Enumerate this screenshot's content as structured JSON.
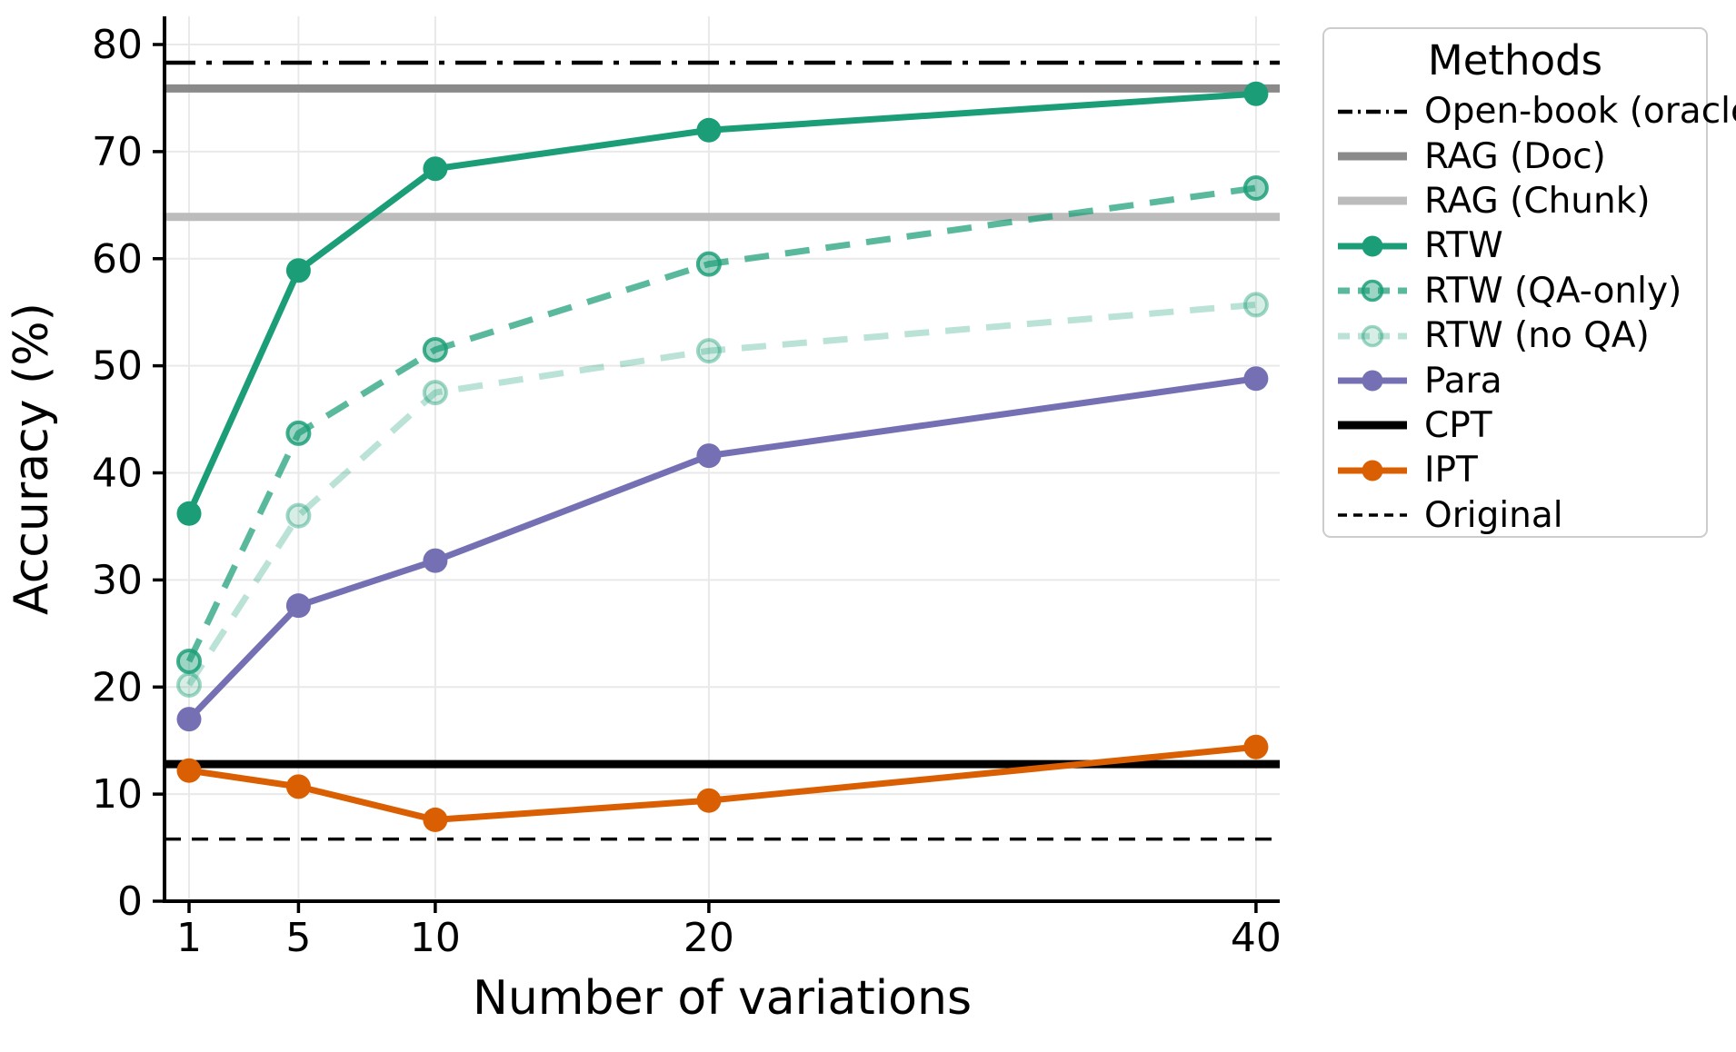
{
  "figure": {
    "background": "#ffffff",
    "text_color": "#000000",
    "grid_color": "#e9e9e9"
  },
  "legend": {
    "title": "Methods",
    "items": [
      {
        "label": "Open-book (oracle)",
        "slug": "open-book-oracle",
        "color": "#000000",
        "style": "dashdot",
        "width": 4.5,
        "marker": false,
        "opacity": 1
      },
      {
        "label": "RAG (Doc)",
        "slug": "rag-doc",
        "color": "#8a8a8a",
        "style": "solid",
        "width": 9,
        "marker": false,
        "opacity": 1
      },
      {
        "label": "RAG (Chunk)",
        "slug": "rag-chunk",
        "color": "#bcbcbc",
        "style": "solid",
        "width": 9,
        "marker": false,
        "opacity": 1
      },
      {
        "label": "RTW",
        "slug": "rtw",
        "color": "#1b9e77",
        "style": "solid",
        "width": 7,
        "marker": true,
        "opacity": 1
      },
      {
        "label": "RTW (QA-only)",
        "slug": "rtw-qa-only",
        "color": "#1b9e77",
        "style": "dashed",
        "width": 7,
        "marker": true,
        "opacity": 0.72
      },
      {
        "label": "RTW (no QA)",
        "slug": "rtw-no-qa",
        "color": "#1b9e77",
        "style": "dashed",
        "width": 7,
        "marker": true,
        "opacity": 0.3
      },
      {
        "label": "Para",
        "slug": "para",
        "color": "#7570b3",
        "style": "solid",
        "width": 7,
        "marker": true,
        "opacity": 1
      },
      {
        "label": "CPT",
        "slug": "cpt",
        "color": "#000000",
        "style": "solid",
        "width": 9,
        "marker": false,
        "opacity": 1
      },
      {
        "label": "IPT",
        "slug": "ipt",
        "color": "#d95f02",
        "style": "solid",
        "width": 7,
        "marker": true,
        "opacity": 1
      },
      {
        "label": "Original",
        "slug": "original",
        "color": "#000000",
        "style": "shortdash",
        "width": 3.5,
        "marker": false,
        "opacity": 1
      }
    ]
  },
  "chart_data": {
    "type": "line",
    "title": "",
    "xlabel": "Number of variations",
    "ylabel": "Accuracy (%)",
    "x": [
      1,
      5,
      10,
      20,
      40
    ],
    "x_ticks": [
      1,
      5,
      10,
      20,
      40
    ],
    "y_ticks": [
      0,
      10,
      20,
      30,
      40,
      50,
      60,
      70,
      80
    ],
    "xlim": [
      0.2,
      40.9
    ],
    "ylim": [
      0,
      82.6
    ],
    "grid": true,
    "legend_position": "outside-right",
    "legend_title": "Methods",
    "series": [
      {
        "name": "RTW",
        "slug": "rtw",
        "color": "#1b9e77",
        "style": "solid",
        "opacity": 1,
        "marker": true,
        "values": [
          36.2,
          58.9,
          68.4,
          72.0,
          75.4
        ]
      },
      {
        "name": "RTW (QA-only)",
        "slug": "rtw-qa-only",
        "color": "#1b9e77",
        "style": "dashed",
        "opacity": 0.72,
        "marker": true,
        "values": [
          22.4,
          43.7,
          51.5,
          59.5,
          66.6
        ]
      },
      {
        "name": "RTW (no QA)",
        "slug": "rtw-no-qa",
        "color": "#1b9e77",
        "style": "dashed",
        "opacity": 0.3,
        "marker": true,
        "values": [
          20.2,
          36.0,
          47.5,
          51.4,
          55.7
        ]
      },
      {
        "name": "Para",
        "slug": "para",
        "color": "#7570b3",
        "style": "solid",
        "opacity": 1,
        "marker": true,
        "values": [
          17.0,
          27.6,
          31.8,
          41.6,
          48.8
        ]
      },
      {
        "name": "IPT",
        "slug": "ipt",
        "color": "#d95f02",
        "style": "solid",
        "opacity": 1,
        "marker": true,
        "values": [
          12.2,
          10.7,
          7.6,
          9.4,
          14.4
        ]
      }
    ],
    "hlines": [
      {
        "name": "Open-book (oracle)",
        "slug": "open-book-oracle",
        "value": 78.3,
        "color": "#000000",
        "style": "dashdot",
        "width": 4.5
      },
      {
        "name": "RAG (Doc)",
        "slug": "rag-doc",
        "value": 75.9,
        "color": "#8a8a8a",
        "style": "solid",
        "width": 9
      },
      {
        "name": "RAG (Chunk)",
        "slug": "rag-chunk",
        "value": 63.9,
        "color": "#bcbcbc",
        "style": "solid",
        "width": 9
      },
      {
        "name": "CPT",
        "slug": "cpt",
        "value": 12.8,
        "color": "#000000",
        "style": "solid",
        "width": 9
      },
      {
        "name": "Original",
        "slug": "original",
        "value": 5.8,
        "color": "#000000",
        "style": "shortdash",
        "width": 3.5
      }
    ]
  }
}
